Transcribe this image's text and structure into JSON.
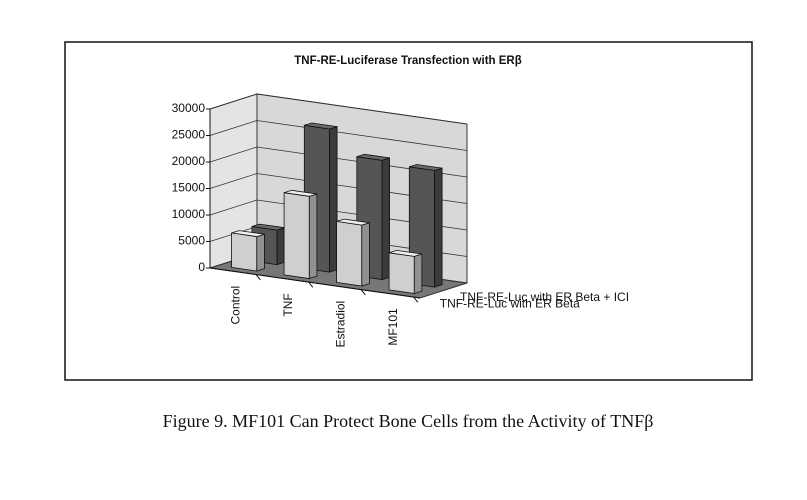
{
  "chart_data": {
    "type": "bar3d",
    "title": "TNF-RE-Luciferase Transfection with ERβ",
    "categories": [
      "Control",
      "TNF",
      "Estradiol",
      "MF101"
    ],
    "series": [
      {
        "name": "TNF-RE-Luc with ER Beta",
        "color": "#cfcfcf",
        "values": [
          6500,
          15500,
          11500,
          7000
        ]
      },
      {
        "name": "TNF-RE-Luc with ER Beta + ICI",
        "color": "#555555",
        "values": [
          6500,
          27000,
          22500,
          22000
        ]
      }
    ],
    "ylim": [
      0,
      30000
    ],
    "yticks": [
      0,
      5000,
      10000,
      15000,
      20000,
      25000,
      30000
    ],
    "grid": true
  },
  "caption": "Figure 9.  MF101 Can Protect Bone Cells from the Activity of TNFβ"
}
